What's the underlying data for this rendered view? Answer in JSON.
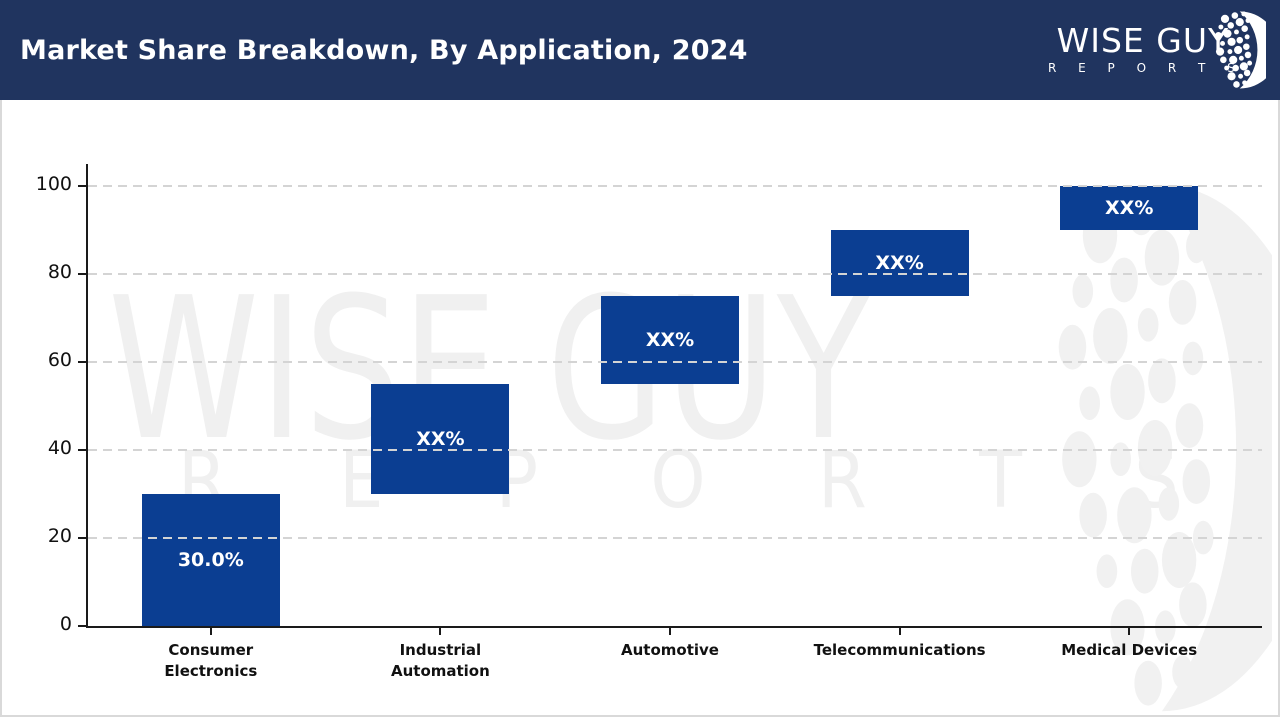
{
  "header": {
    "title": "Market Share Breakdown, By Application, 2024",
    "logo": {
      "name_line": "WISE GUY",
      "reports_line": "R E P O R T S"
    }
  },
  "watermark": {
    "name_line": "WISE GUY",
    "reports_line": "R E P O R T S"
  },
  "chart_data": {
    "type": "bar",
    "variant": "floating-segment-waterfall",
    "title": "Market Share Breakdown, By Application, 2024",
    "categories": [
      "Consumer Electronics",
      "Industrial Automation",
      "Automotive",
      "Telecommunications",
      "Medical Devices"
    ],
    "category_label_lines": [
      [
        "Consumer",
        "Electronics"
      ],
      [
        "Industrial",
        "Automation"
      ],
      [
        "Automotive"
      ],
      [
        "Telecommunications"
      ],
      [
        "Medical Devices"
      ]
    ],
    "series": [
      {
        "name": "Market share (%)",
        "segments": [
          {
            "category": "Consumer Electronics",
            "start": 0,
            "end": 30,
            "label": "30.0%"
          },
          {
            "category": "Industrial Automation",
            "start": 30,
            "end": 55,
            "label": "XX%"
          },
          {
            "category": "Automotive",
            "start": 55,
            "end": 75,
            "label": "XX%"
          },
          {
            "category": "Telecommunications",
            "start": 75,
            "end": 90,
            "label": "XX%"
          },
          {
            "category": "Medical Devices",
            "start": 90,
            "end": 100,
            "label": "XX%"
          }
        ]
      }
    ],
    "ylim": [
      0,
      100
    ],
    "yticks": [
      0,
      20,
      40,
      60,
      80,
      100
    ],
    "grid": {
      "horizontal": true,
      "style": "dashed"
    },
    "legend": "none",
    "colors": {
      "bar": "#0b3e92",
      "bar_label": "#ffffff",
      "axis": "#1a1a1a",
      "gridline": "#d4d4d4",
      "header_bg": "#20345f",
      "watermark": "#f0f0f0"
    }
  }
}
